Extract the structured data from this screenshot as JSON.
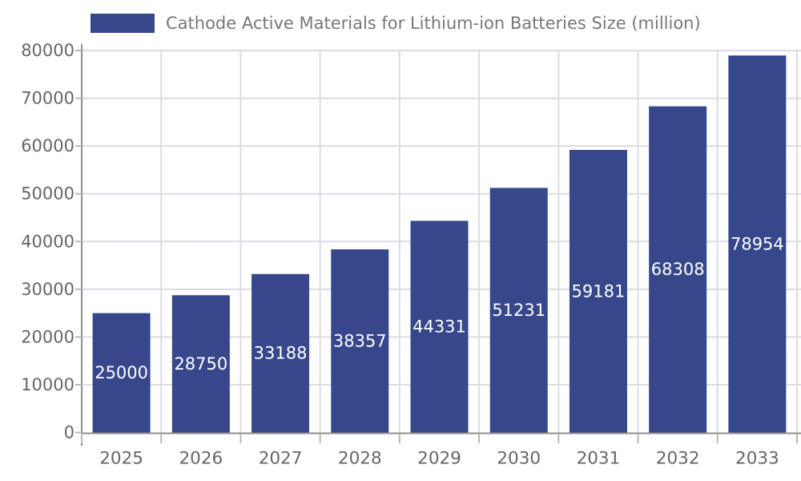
{
  "chart_data": {
    "type": "bar",
    "series_name": "Cathode Active Materials for Lithium-ion Batteries Size (million)",
    "categories": [
      "2025",
      "2026",
      "2027",
      "2028",
      "2029",
      "2030",
      "2031",
      "2032",
      "2033"
    ],
    "values": [
      25000,
      28750,
      33188,
      38357,
      44331,
      51231,
      59181,
      68308,
      78954
    ],
    "xlabel": "",
    "ylabel": "",
    "ylim": [
      0,
      80000
    ],
    "ytick_step": 10000,
    "grid": true,
    "legend_position": "top-left",
    "colors": {
      "bar": "#36478B",
      "grid": "#DCDCE4",
      "spine": "#8E8E8E",
      "tick": "#B8B8B8",
      "axis_text": "#666666",
      "legend_text": "#777777",
      "value_label": "#FFFFFF"
    }
  }
}
